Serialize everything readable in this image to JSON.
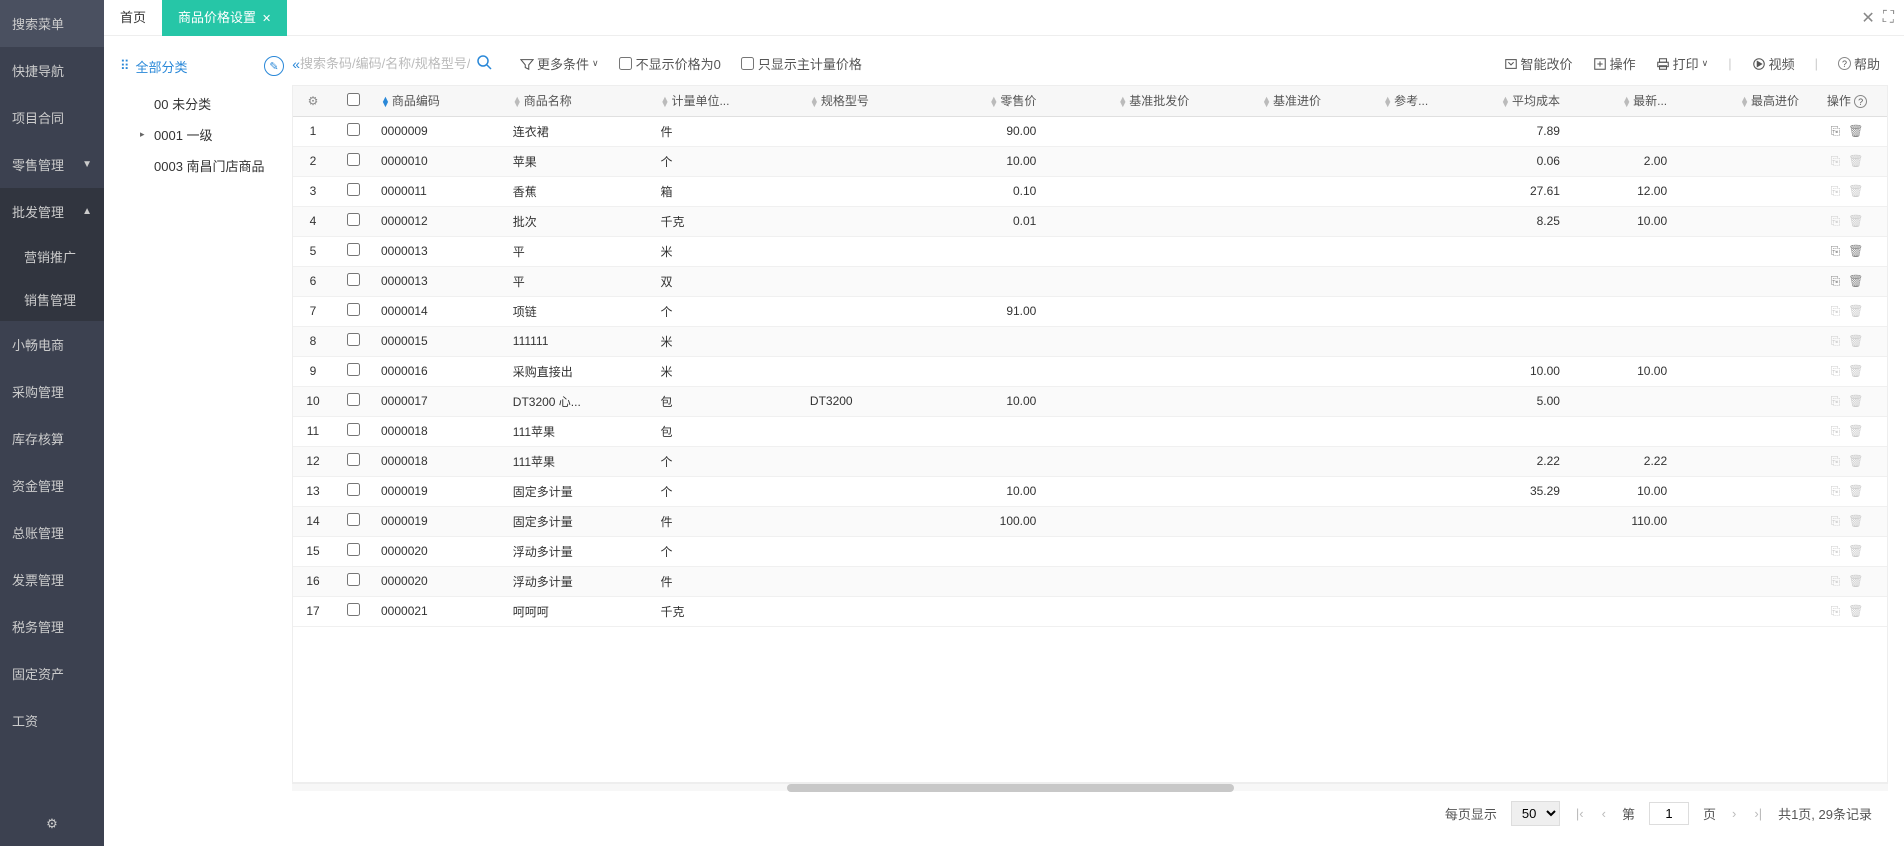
{
  "sidebar": {
    "items": [
      {
        "label": "搜索菜单"
      },
      {
        "label": "快捷导航"
      },
      {
        "label": "项目合同"
      },
      {
        "label": "零售管理",
        "caret": "▼"
      },
      {
        "label": "批发管理",
        "caret": "▲",
        "expanded": true,
        "children": [
          "营销推广",
          "销售管理"
        ]
      },
      {
        "label": "小畅电商"
      },
      {
        "label": "采购管理"
      },
      {
        "label": "库存核算"
      },
      {
        "label": "资金管理"
      },
      {
        "label": "总账管理"
      },
      {
        "label": "发票管理"
      },
      {
        "label": "税务管理"
      },
      {
        "label": "固定资产"
      },
      {
        "label": "工资"
      }
    ]
  },
  "tabs": {
    "items": [
      {
        "label": "首页",
        "active": false
      },
      {
        "label": "商品价格设置",
        "active": true,
        "closable": true
      }
    ]
  },
  "tree": {
    "header": "全部分类",
    "nodes": [
      {
        "label": "00 未分类"
      },
      {
        "label": "0001 一级",
        "hasChildren": true
      },
      {
        "label": "0003 南昌门店商品"
      }
    ]
  },
  "toolbar": {
    "searchPlaceholder": "搜索条码/编码/名称/规格型号/别名",
    "moreConditions": "更多条件",
    "hideZeroPrice": "不显示价格为0",
    "onlyMainUnit": "只显示主计量价格",
    "smartPrice": "智能改价",
    "operate": "操作",
    "print": "打印",
    "video": "视频",
    "help": "帮助"
  },
  "table": {
    "columns": [
      "",
      "",
      "商品编码",
      "商品名称",
      "计量单位...",
      "规格型号",
      "零售价",
      "基准批发价",
      "基准进价",
      "参考...",
      "平均成本",
      "最新...",
      "最高进价",
      "操作"
    ],
    "rows": [
      {
        "n": 1,
        "code": "0000009",
        "name": "连衣裙",
        "unit": "件",
        "spec": "",
        "retail": "90.00",
        "whole": "",
        "pur": "",
        "ref": "",
        "avg": "7.89",
        "latest": "",
        "max": "",
        "enabled": true
      },
      {
        "n": 2,
        "code": "0000010",
        "name": "苹果",
        "unit": "个",
        "spec": "",
        "retail": "10.00",
        "whole": "",
        "pur": "",
        "ref": "",
        "avg": "0.06",
        "latest": "2.00",
        "max": "",
        "enabled": false
      },
      {
        "n": 3,
        "code": "0000011",
        "name": "香蕉",
        "unit": "箱",
        "spec": "",
        "retail": "0.10",
        "whole": "",
        "pur": "",
        "ref": "",
        "avg": "27.61",
        "latest": "12.00",
        "max": "",
        "enabled": false
      },
      {
        "n": 4,
        "code": "0000012",
        "name": "批次",
        "unit": "千克",
        "spec": "",
        "retail": "0.01",
        "whole": "",
        "pur": "",
        "ref": "",
        "avg": "8.25",
        "latest": "10.00",
        "max": "",
        "enabled": false
      },
      {
        "n": 5,
        "code": "0000013",
        "name": "平",
        "unit": "米",
        "spec": "",
        "retail": "",
        "whole": "",
        "pur": "",
        "ref": "",
        "avg": "",
        "latest": "",
        "max": "",
        "enabled": true
      },
      {
        "n": 6,
        "code": "0000013",
        "name": "平",
        "unit": "双",
        "spec": "",
        "retail": "",
        "whole": "",
        "pur": "",
        "ref": "",
        "avg": "",
        "latest": "",
        "max": "",
        "enabled": true
      },
      {
        "n": 7,
        "code": "0000014",
        "name": "项链",
        "unit": "个",
        "spec": "",
        "retail": "91.00",
        "whole": "",
        "pur": "",
        "ref": "",
        "avg": "",
        "latest": "",
        "max": "",
        "enabled": false
      },
      {
        "n": 8,
        "code": "0000015",
        "name": "111111",
        "unit": "米",
        "spec": "",
        "retail": "",
        "whole": "",
        "pur": "",
        "ref": "",
        "avg": "",
        "latest": "",
        "max": "",
        "enabled": false
      },
      {
        "n": 9,
        "code": "0000016",
        "name": "采购直接出",
        "unit": "米",
        "spec": "",
        "retail": "",
        "whole": "",
        "pur": "",
        "ref": "",
        "avg": "10.00",
        "latest": "10.00",
        "max": "",
        "enabled": false
      },
      {
        "n": 10,
        "code": "0000017",
        "name": "DT3200 心...",
        "unit": "包",
        "spec": "DT3200",
        "retail": "10.00",
        "whole": "",
        "pur": "",
        "ref": "",
        "avg": "5.00",
        "latest": "",
        "max": "",
        "enabled": false
      },
      {
        "n": 11,
        "code": "0000018",
        "name": "111苹果",
        "unit": "包",
        "spec": "",
        "retail": "",
        "whole": "",
        "pur": "",
        "ref": "",
        "avg": "",
        "latest": "",
        "max": "",
        "enabled": false
      },
      {
        "n": 12,
        "code": "0000018",
        "name": "111苹果",
        "unit": "个",
        "spec": "",
        "retail": "",
        "whole": "",
        "pur": "",
        "ref": "",
        "avg": "2.22",
        "latest": "2.22",
        "max": "",
        "enabled": false
      },
      {
        "n": 13,
        "code": "0000019",
        "name": "固定多计量",
        "unit": "个",
        "spec": "",
        "retail": "10.00",
        "whole": "",
        "pur": "",
        "ref": "",
        "avg": "35.29",
        "latest": "10.00",
        "max": "",
        "enabled": false
      },
      {
        "n": 14,
        "code": "0000019",
        "name": "固定多计量",
        "unit": "件",
        "spec": "",
        "retail": "100.00",
        "whole": "",
        "pur": "",
        "ref": "",
        "avg": "",
        "latest": "110.00",
        "max": "",
        "enabled": false
      },
      {
        "n": 15,
        "code": "0000020",
        "name": "浮动多计量",
        "unit": "个",
        "spec": "",
        "retail": "",
        "whole": "",
        "pur": "",
        "ref": "",
        "avg": "",
        "latest": "",
        "max": "",
        "enabled": false
      },
      {
        "n": 16,
        "code": "0000020",
        "name": "浮动多计量",
        "unit": "件",
        "spec": "",
        "retail": "",
        "whole": "",
        "pur": "",
        "ref": "",
        "avg": "",
        "latest": "",
        "max": "",
        "enabled": false
      },
      {
        "n": 17,
        "code": "0000021",
        "name": "呵呵呵",
        "unit": "千克",
        "spec": "",
        "retail": "",
        "whole": "",
        "pur": "",
        "ref": "",
        "avg": "",
        "latest": "",
        "max": "",
        "enabled": false
      }
    ]
  },
  "pager": {
    "perPageLabel": "每页显示",
    "perPage": "50",
    "pageLabel1": "第",
    "pageLabel2": "页",
    "currentPage": "1",
    "summary": "共1页, 29条记录"
  },
  "hscroll": {
    "left_pct": 31,
    "width_pct": 28
  }
}
